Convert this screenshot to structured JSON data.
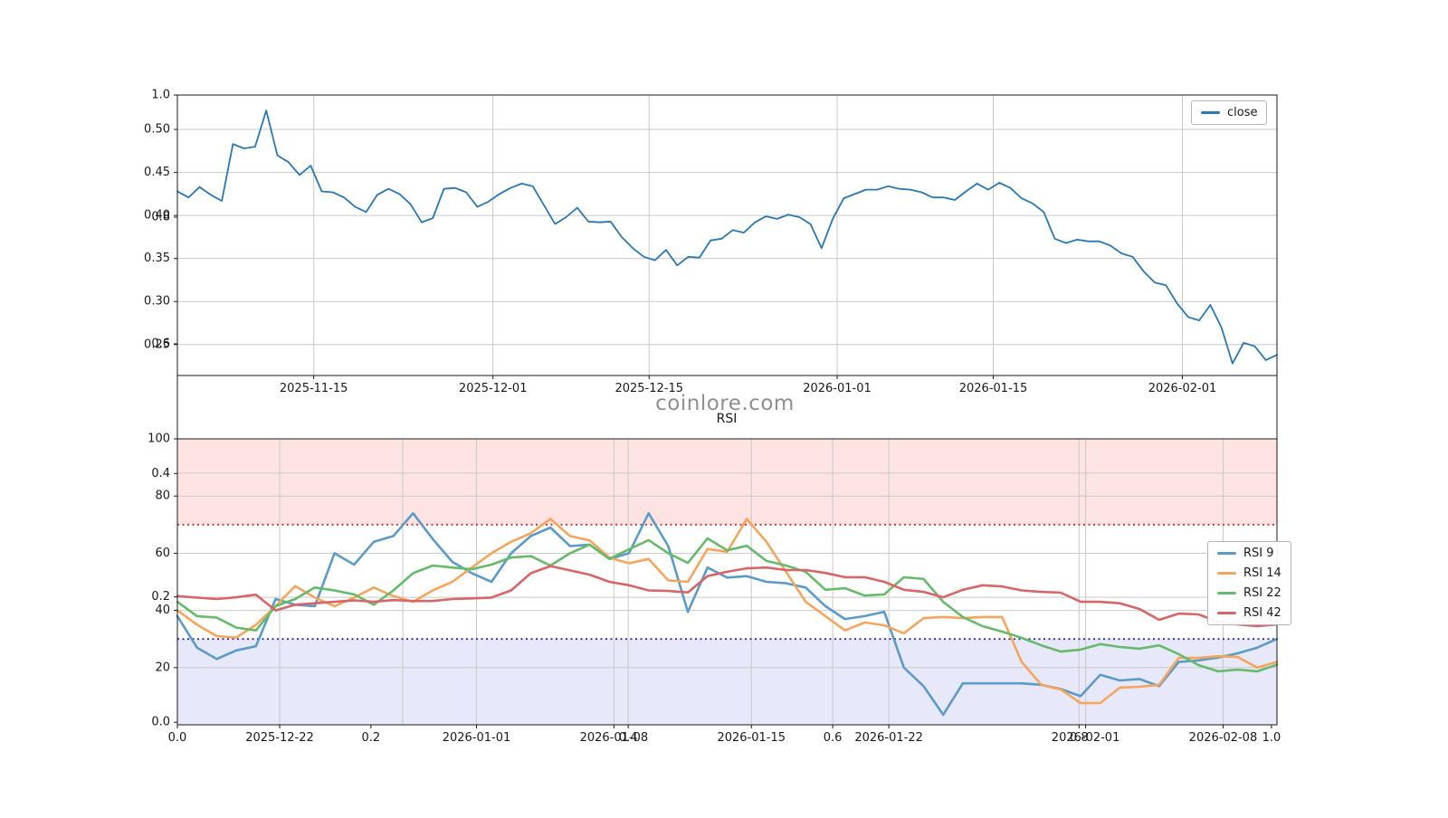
{
  "watermark": "coinlore.com",
  "rsi_title": "RSI",
  "style": {
    "grid_color": "#c9c9c9",
    "spine_color": "#1a1a1a",
    "tick_text_color": "#1a1a1a",
    "tick_font_px": 13,
    "watermark_color": "#8f8f8f"
  },
  "overlay_axis": {
    "y_ticks": [
      {
        "label": "1.0",
        "f": 0.0
      },
      {
        "label": "0.8",
        "f": 0.194
      },
      {
        "label": "0.6",
        "f": 0.395
      },
      {
        "label": "0.4",
        "f": 0.601
      },
      {
        "label": "0.2",
        "f": 0.797
      },
      {
        "label": "0.0",
        "f": 0.996
      }
    ],
    "x_ticks": [
      {
        "label": "0.0",
        "f": 0.0
      },
      {
        "label": "0.2",
        "f": 0.176
      },
      {
        "label": "0.4",
        "f": 0.41
      },
      {
        "label": "0.6",
        "f": 0.596
      },
      {
        "label": "0.8",
        "f": 0.82
      },
      {
        "label": "1.0",
        "f": 0.995
      }
    ]
  },
  "chart_data": [
    {
      "type": "line",
      "name": "price-chart",
      "title": "",
      "legend_position": "upper right",
      "grid": true,
      "x_axis": {
        "ticks": [
          {
            "label": "2025-11-15",
            "f": 0.124
          },
          {
            "label": "2025-12-01",
            "f": 0.287
          },
          {
            "label": "2025-12-15",
            "f": 0.429
          },
          {
            "label": "2026-01-01",
            "f": 0.6
          },
          {
            "label": "2026-01-15",
            "f": 0.742
          },
          {
            "label": "2026-02-01",
            "f": 0.914
          }
        ]
      },
      "y_axis": {
        "min": 0.214,
        "max": 0.54,
        "ticks": [
          {
            "label": "0.50",
            "v": 0.5
          },
          {
            "label": "0.45",
            "v": 0.45
          },
          {
            "label": "0.40",
            "v": 0.4
          },
          {
            "label": "0.35",
            "v": 0.35
          },
          {
            "label": "0.30",
            "v": 0.3
          },
          {
            "label": "0.25",
            "v": 0.25
          }
        ]
      },
      "series": [
        {
          "name": "close",
          "color": "#2878b5",
          "width": 1.8,
          "values": [
            0.428,
            0.421,
            0.433,
            0.424,
            0.417,
            0.483,
            0.478,
            0.48,
            0.522,
            0.47,
            0.462,
            0.447,
            0.458,
            0.428,
            0.427,
            0.421,
            0.41,
            0.404,
            0.424,
            0.431,
            0.425,
            0.413,
            0.392,
            0.397,
            0.431,
            0.432,
            0.427,
            0.41,
            0.416,
            0.425,
            0.432,
            0.437,
            0.434,
            0.412,
            0.39,
            0.398,
            0.409,
            0.393,
            0.392,
            0.393,
            0.375,
            0.362,
            0.352,
            0.348,
            0.36,
            0.342,
            0.352,
            0.351,
            0.371,
            0.373,
            0.383,
            0.38,
            0.392,
            0.399,
            0.396,
            0.401,
            0.398,
            0.39,
            0.362,
            0.396,
            0.42,
            0.425,
            0.43,
            0.43,
            0.434,
            0.431,
            0.43,
            0.427,
            0.421,
            0.421,
            0.418,
            0.428,
            0.437,
            0.43,
            0.438,
            0.432,
            0.42,
            0.414,
            0.404,
            0.373,
            0.368,
            0.372,
            0.37,
            0.37,
            0.365,
            0.356,
            0.352,
            0.335,
            0.322,
            0.319,
            0.298,
            0.282,
            0.278,
            0.296,
            0.27,
            0.228,
            0.252,
            0.248,
            0.232,
            0.238
          ]
        }
      ]
    },
    {
      "type": "line",
      "name": "rsi-chart",
      "title": "RSI",
      "legend_position": "right",
      "grid": true,
      "x_axis": {
        "ticks": [
          {
            "label": "2025-12-22",
            "f": 0.093
          },
          {
            "label": "2026-01-01",
            "f": 0.272
          },
          {
            "label": "2026-01-08",
            "f": 0.397
          },
          {
            "label": "2026-01-15",
            "f": 0.522
          },
          {
            "label": "2026-01-22",
            "f": 0.647
          },
          {
            "label": "2026-02-01",
            "f": 0.826
          },
          {
            "label": "2026-02-08",
            "f": 0.951
          }
        ]
      },
      "y_axis": {
        "min": 0,
        "max": 100,
        "ticks": [
          {
            "label": "100",
            "v": 100
          },
          {
            "label": "80",
            "v": 80
          },
          {
            "label": "60",
            "v": 60
          },
          {
            "label": "40",
            "v": 40
          },
          {
            "label": "20",
            "v": 20
          }
        ]
      },
      "extra_grid": {
        "x_f": [
          0.205,
          0.41,
          0.596,
          0.82
        ],
        "y_v": [
          88,
          44.6
        ]
      },
      "bands": [
        {
          "from": 70,
          "to": 100,
          "color": "rgba(244,67,54,0.15)",
          "meaning": "overbought"
        },
        {
          "from": 0,
          "to": 30,
          "color": "rgba(92,92,226,0.14)",
          "meaning": "oversold"
        }
      ],
      "hlines": [
        {
          "v": 70,
          "color": "#e02828",
          "style": "dotted"
        },
        {
          "v": 30,
          "color": "#2828c8",
          "style": "dotted"
        }
      ],
      "series": [
        {
          "name": "RSI 9",
          "color": "#5b9bc8",
          "width": 2.6,
          "values": [
            38,
            27,
            23,
            26,
            27.5,
            44,
            42,
            41.5,
            60,
            56,
            64,
            66,
            74,
            65,
            57,
            53,
            50,
            60,
            66,
            69,
            62.5,
            63,
            58,
            60,
            74,
            62.5,
            39.5,
            55,
            51.5,
            52,
            50,
            49.5,
            48,
            41.5,
            37,
            38,
            39.5,
            20,
            13.5,
            3.5,
            14.5,
            14.5,
            14.5,
            14.5,
            14,
            12.5,
            10,
            17.5,
            15.5,
            16,
            13.5,
            22,
            22.5,
            23.5,
            25,
            27,
            30
          ]
        },
        {
          "name": "RSI 14",
          "color": "#f6a55c",
          "width": 2.6,
          "values": [
            40,
            35,
            31,
            30.5,
            35,
            41.5,
            48.5,
            44.5,
            41.5,
            44.5,
            48,
            45,
            43,
            47,
            50,
            55,
            60,
            64,
            67,
            72,
            66,
            64.5,
            58.5,
            56.5,
            58,
            50.5,
            50,
            61.5,
            60.5,
            72,
            64,
            53.5,
            43,
            38,
            33,
            35.8,
            34.8,
            32,
            37.3,
            37.7,
            37.3,
            37.7,
            37.7,
            22,
            14,
            12.3,
            7.6,
            7.6,
            13,
            13.3,
            14,
            23.4,
            23.4,
            24,
            23.7,
            20,
            22
          ]
        },
        {
          "name": "RSI 22",
          "color": "#66bb6a",
          "width": 2.6,
          "values": [
            43,
            38,
            37.5,
            34,
            33,
            41.5,
            44,
            48,
            47,
            45.6,
            42,
            47,
            53,
            55.7,
            55,
            54.4,
            56,
            58.5,
            59,
            55.7,
            60,
            63,
            58,
            61.4,
            64.6,
            60,
            56.6,
            65.2,
            61,
            62.6,
            57.3,
            55.7,
            53.5,
            47.2,
            47.8,
            45.2,
            45.6,
            51.6,
            51,
            43,
            37.7,
            34.5,
            32.6,
            30.4,
            27.8,
            25.6,
            26.3,
            28.2,
            27.2,
            26.6,
            27.8,
            24.7,
            20.9,
            18.7,
            19.3,
            18.7,
            21
          ]
        },
        {
          "name": "RSI 42",
          "color": "#d96568",
          "width": 2.6,
          "values": [
            45,
            44.5,
            44,
            44.6,
            45.5,
            40,
            42,
            42.5,
            43,
            43.5,
            43,
            43.6,
            43.3,
            43.3,
            44,
            44.2,
            44.5,
            47,
            53,
            55.5,
            54,
            52.5,
            50,
            48.8,
            47,
            46.8,
            46.3,
            52,
            53.5,
            54.7,
            55,
            54.1,
            54.1,
            53.1,
            51.6,
            51.6,
            50,
            47.2,
            46.5,
            44.6,
            47.2,
            48.8,
            48.4,
            47,
            46.5,
            46.2,
            43,
            43,
            42.5,
            40.5,
            36.7,
            38.9,
            38.6,
            36.1,
            35.1,
            34.5,
            35.1
          ]
        }
      ]
    }
  ]
}
